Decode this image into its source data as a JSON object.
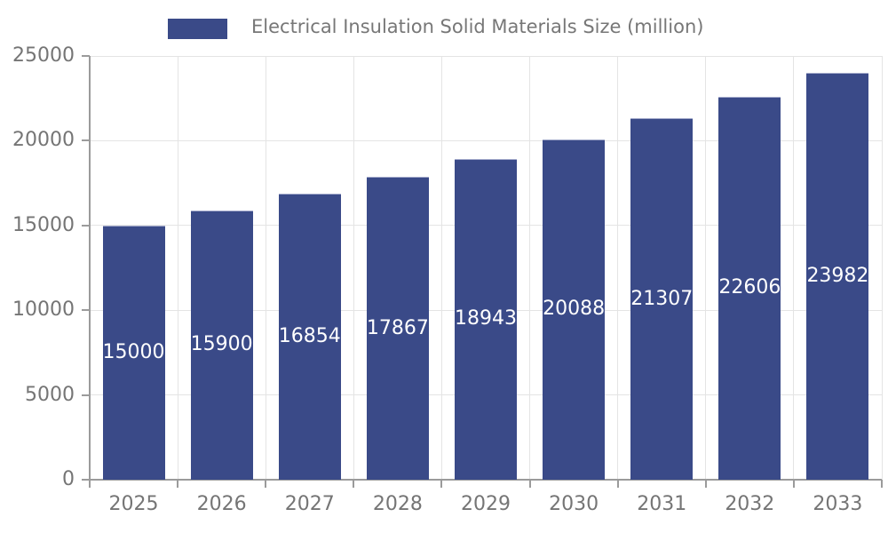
{
  "chart_data": {
    "type": "bar",
    "title": "Electrical Insulation Solid Materials Size (million)",
    "categories": [
      "2025",
      "2026",
      "2027",
      "2028",
      "2029",
      "2030",
      "2031",
      "2032",
      "2033"
    ],
    "values": [
      15000,
      15900,
      16854,
      17867,
      18943,
      20088,
      21307,
      22606,
      23982
    ],
    "xlabel": "",
    "ylabel": "",
    "ylim": [
      0,
      25000
    ],
    "ytick_step": 5000,
    "ytick_labels": [
      "0",
      "5000",
      "10000",
      "15000",
      "20000",
      "25000"
    ],
    "grid": true,
    "legend_position": "top",
    "value_labels_inside_bars": true,
    "colors": {
      "bar_fill": "#3A4A88",
      "bar_edge": "#A3AACB",
      "value_label_text": "#FFFFFF",
      "axis_line": "#9B9B9B",
      "grid_line": "#E4E4E4",
      "tick_label_text": "#757575",
      "title_text": "#777777",
      "background": "#FFFFFF"
    }
  }
}
